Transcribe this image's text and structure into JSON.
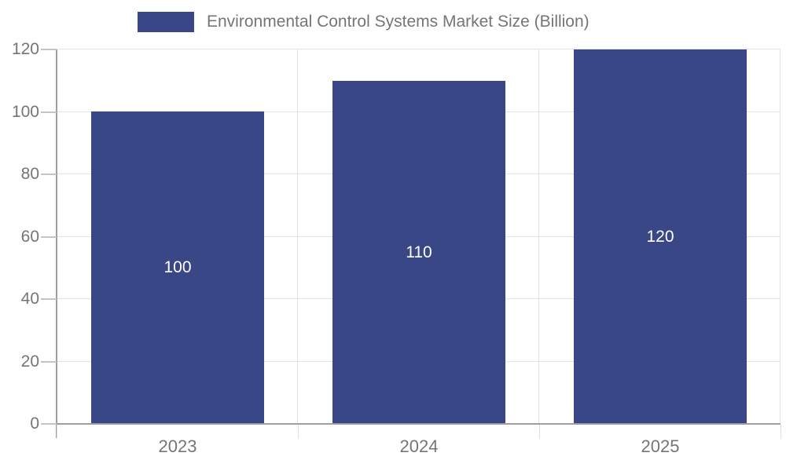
{
  "chart_data": {
    "type": "bar",
    "title": "Environmental Control Systems Market Size (Billion)",
    "legend": {
      "position": "top",
      "entries": [
        {
          "label": "Environmental Control Systems Market Size (Billion)",
          "color": "#3A4786"
        }
      ]
    },
    "categories": [
      "2023",
      "2024",
      "2025"
    ],
    "series": [
      {
        "name": "Environmental Control Systems Market Size (Billion)",
        "values": [
          100,
          110,
          120
        ]
      }
    ],
    "bar_labels": [
      "100",
      "110",
      "120"
    ],
    "xlabel": "",
    "ylabel": "",
    "ylim": [
      0,
      120
    ],
    "yticks": [
      0,
      20,
      40,
      60,
      80,
      100,
      120
    ],
    "grid": true,
    "colors": {
      "bar": "#3A4786",
      "bar_label_text": "#FFFFFF",
      "axis_text": "#757575",
      "axis_line": "#9E9E9E",
      "gridline": "#E3E3E3",
      "background": "#FFFFFF"
    }
  }
}
